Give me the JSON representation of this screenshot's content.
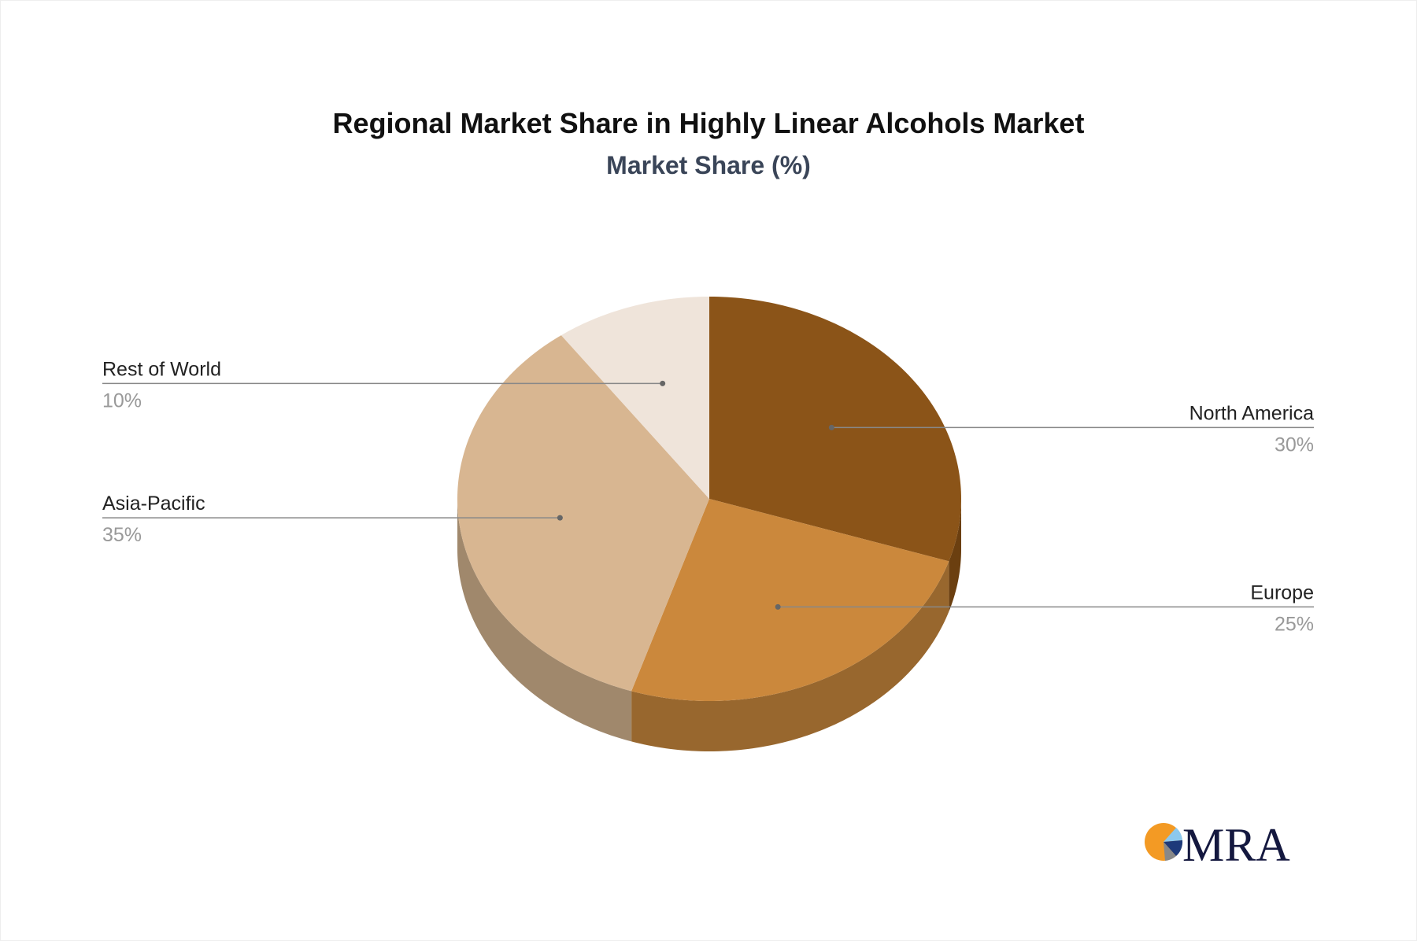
{
  "chart_data": {
    "type": "pie",
    "title": "Regional Market Share in Highly Linear Alcohols Market",
    "subtitle": "Market Share (%)",
    "style": "3d",
    "slices": [
      {
        "label": "North America",
        "value": 30,
        "value_label": "30%",
        "color": "#8B5418",
        "side_color": "#6B3F10",
        "label_side": "right"
      },
      {
        "label": "Europe",
        "value": 25,
        "value_label": "25%",
        "color": "#CB883C",
        "side_color": "#98672E",
        "label_side": "right"
      },
      {
        "label": "Asia-Pacific",
        "value": 35,
        "value_label": "35%",
        "color": "#D8B691",
        "side_color": "#A0886C",
        "label_side": "left"
      },
      {
        "label": "Rest of World",
        "value": 10,
        "value_label": "10%",
        "color": "#EFE4DA",
        "side_color": "#C9BDB2",
        "label_side": "left"
      }
    ]
  },
  "logo": {
    "text": "MRA",
    "colors": [
      "#F39A24",
      "#8CC8EE",
      "#1E3A7A",
      "#888888",
      "#14183F"
    ]
  }
}
